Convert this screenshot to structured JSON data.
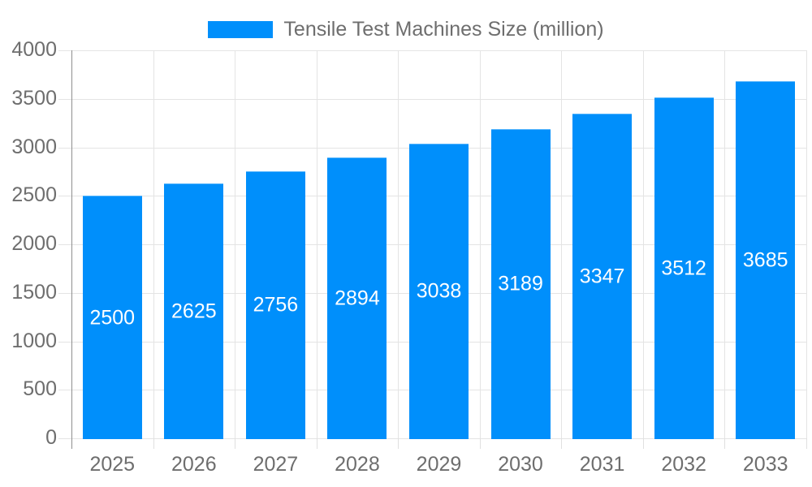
{
  "legend": {
    "swatch_color": "#008FFB"
  },
  "chart_data": {
    "type": "bar",
    "title": "Tensile Test Machines Size (million)",
    "series_name": "Tensile Test Machines Size (million)",
    "categories": [
      "2025",
      "2026",
      "2027",
      "2028",
      "2029",
      "2030",
      "2031",
      "2032",
      "2033"
    ],
    "values": [
      2500,
      2625,
      2756,
      2894,
      3038,
      3189,
      3347,
      3512,
      3685
    ],
    "xlabel": "",
    "ylabel": "",
    "ylim": [
      0,
      4000
    ],
    "yticks": [
      0,
      500,
      1000,
      1500,
      2000,
      2500,
      3000,
      3500,
      4000
    ],
    "grid": true,
    "legend_position": "top-center",
    "bar_color": "#008FFB",
    "bar_label_color": "#ffffff"
  },
  "colors": {
    "background": "#ffffff",
    "bar": "#008FFB",
    "grid": "#e4e4e4",
    "axis_line": "#8f8f8f",
    "axis_text": "#6e6e6e",
    "legend_text": "#6e6e6e",
    "bar_label": "#ffffff"
  }
}
